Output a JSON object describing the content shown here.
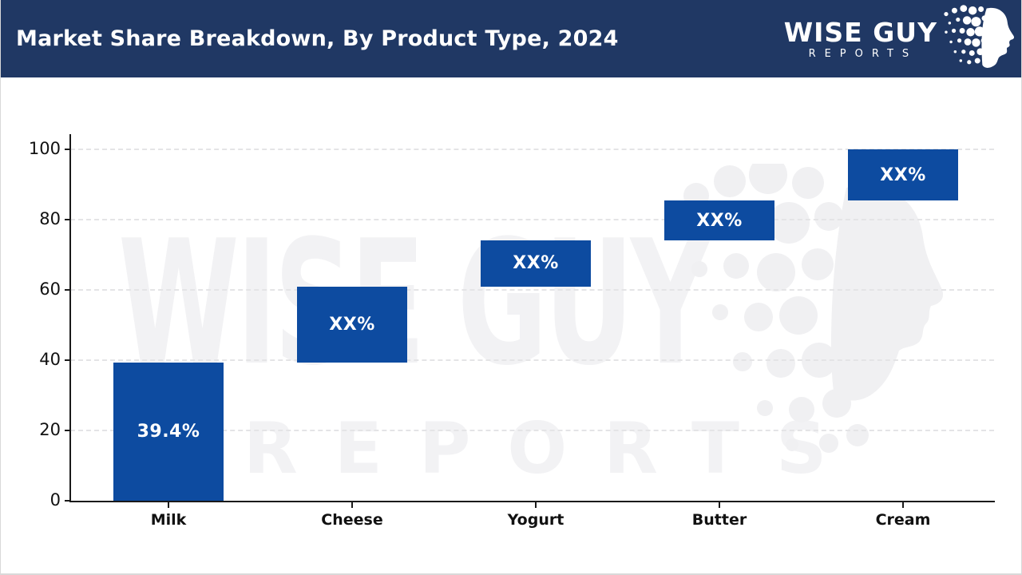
{
  "header": {
    "title": "Market Share Breakdown, By Product Type, 2024",
    "brand": {
      "line1": "WISE GUY",
      "line2": "REPORTS"
    }
  },
  "watermark": {
    "line1": "WISE GUY",
    "line2": "REPORTS"
  },
  "colors": {
    "header_bg": "#203864",
    "bar": "#0d4ba0",
    "bar_label": "#ffffff",
    "grid": "#e4e4e6",
    "axis": "#1a1a1a",
    "watermark": "#f2f2f4",
    "border": "#d9d9d9"
  },
  "chart_data": {
    "type": "bar",
    "variant": "waterfall",
    "title": "Market Share Breakdown, By Product Type, 2024",
    "categories": [
      "Milk",
      "Cheese",
      "Yogurt",
      "Butter",
      "Cream"
    ],
    "segments": [
      {
        "category": "Milk",
        "start": 0,
        "end": 39.4,
        "label": "39.4%"
      },
      {
        "category": "Cheese",
        "start": 39.4,
        "end": 61,
        "label": "XX%"
      },
      {
        "category": "Yogurt",
        "start": 61,
        "end": 74,
        "label": "XX%"
      },
      {
        "category": "Butter",
        "start": 74,
        "end": 85.4,
        "label": "XX%"
      },
      {
        "category": "Cream",
        "start": 85.4,
        "end": 100,
        "label": "XX%"
      }
    ],
    "yticks": [
      0,
      20,
      40,
      60,
      80,
      100
    ],
    "ylim": [
      0,
      105
    ],
    "xlabel": "",
    "ylabel": "",
    "grid": "horizontal-dashed",
    "legend": "none",
    "value_labels_inside_bars": true
  }
}
